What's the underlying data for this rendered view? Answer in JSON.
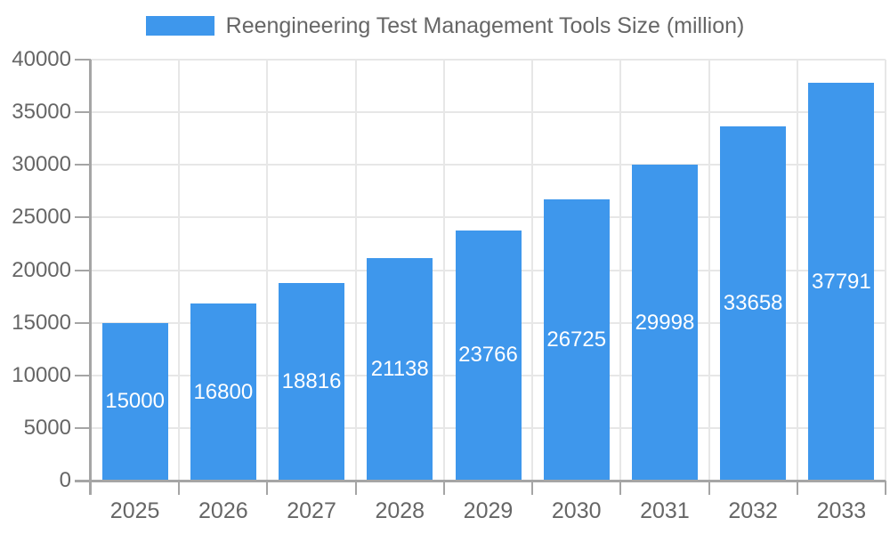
{
  "chart_data": {
    "type": "bar",
    "title": "Reengineering Test Management Tools Size (million)",
    "series_name": "Reengineering Test Management Tools Size (million)",
    "categories": [
      "2025",
      "2026",
      "2027",
      "2028",
      "2029",
      "2030",
      "2031",
      "2032",
      "2033"
    ],
    "values": [
      15000,
      16800,
      18816,
      21138,
      23766,
      26725,
      29998,
      33658,
      37791
    ],
    "xlabel": "",
    "ylabel": "",
    "ylim": [
      0,
      40000
    ],
    "ytick_step": 5000,
    "yticks": [
      0,
      5000,
      10000,
      15000,
      20000,
      25000,
      30000,
      35000,
      40000
    ],
    "grid": true,
    "legend_position": "top",
    "bar_value_label_position": "center-inside",
    "colors": {
      "bar": "#3E97EC",
      "bar_label_text": "#FFFFFF",
      "axis_line": "#A5A5A5",
      "gridline": "#E7E7E7",
      "tick_label_text": "#666666",
      "title_text": "#666666",
      "background": "#FFFFFF"
    }
  }
}
